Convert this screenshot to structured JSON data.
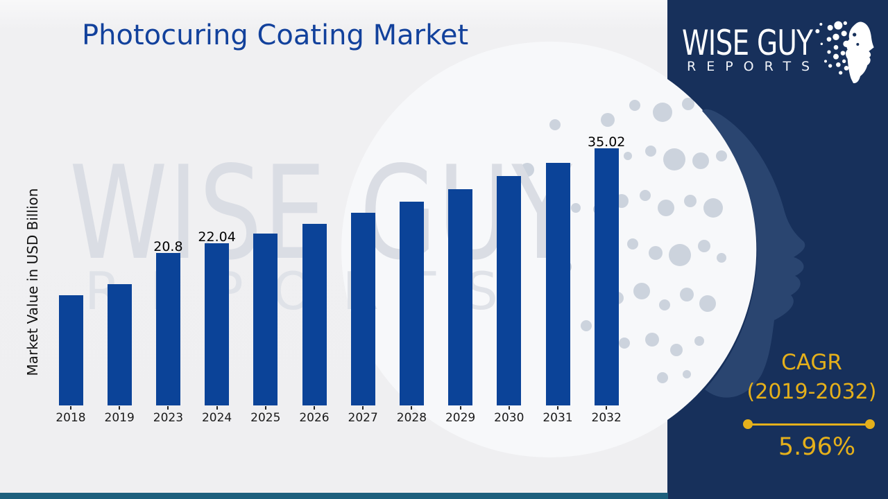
{
  "title": "Photocuring Coating Market",
  "chart_data": {
    "type": "bar",
    "categories": [
      "2018",
      "2019",
      "2023",
      "2024",
      "2025",
      "2026",
      "2027",
      "2028",
      "2029",
      "2030",
      "2031",
      "2032"
    ],
    "values": [
      15.0,
      16.5,
      20.8,
      22.04,
      23.35,
      24.74,
      26.22,
      27.78,
      29.43,
      31.19,
      33.05,
      35.02
    ],
    "bar_labels": [
      "",
      "",
      "20.8",
      "22.04",
      "",
      "",
      "",
      "",
      "",
      "",
      "",
      "35.02"
    ],
    "title": "Photocuring Coating Market",
    "xlabel": "",
    "ylabel": "Market Value in USD Billion",
    "ylim": [
      0,
      38
    ],
    "grid": false,
    "legend": null,
    "bar_color": "#0b4398"
  },
  "watermark": {
    "line1": "WISE GUY",
    "line2": "REPORTS"
  },
  "logo": {
    "line1": "WISE GUY",
    "line2": "REPORTS",
    "icon": "dotted-face-profile"
  },
  "cagr": {
    "label": "CAGR",
    "range": "(2019-2032)",
    "value": "5.96%"
  },
  "colors": {
    "background": "#efeff1",
    "bar_blue": "#0b4398",
    "title_blue": "#12419c",
    "panel_navy": "#17305b",
    "panel_face": "#2a4570",
    "accent_gold": "#e5b01b",
    "teal_strip": "#1d5f7d",
    "watermark_gray": "#d6dae2"
  }
}
